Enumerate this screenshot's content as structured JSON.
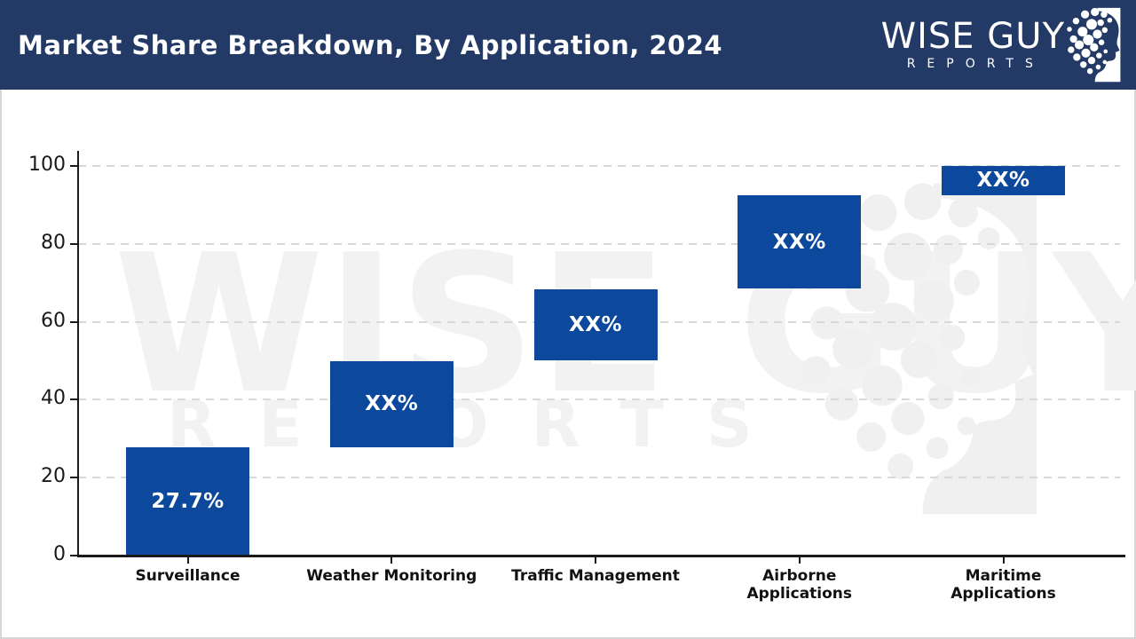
{
  "header": {
    "title": "Market Share Breakdown, By Application, 2024",
    "logo": {
      "line1": "WISE GUY",
      "line2": "REPORTS"
    }
  },
  "watermark": {
    "line1": "WISE GUY",
    "line2": "REPORTS"
  },
  "colors": {
    "header_bg": "#233a66",
    "bar_fill": "#0c499c",
    "bar_label_text": "#ffffff",
    "gridline": "#d9d9d9",
    "axis": "#1a1a1a",
    "watermark": "#f2f2f2",
    "page_border": "#d6d6d6"
  },
  "chart_data": {
    "type": "bar",
    "subtype": "waterfall-stacked-market-share",
    "title": "Market Share Breakdown, By Application, 2024",
    "categories": [
      "Surveillance",
      "Weather Monitoring",
      "Traffic Management",
      "Airborne Applications",
      "Maritime Applications"
    ],
    "x_tick_label_lines": [
      [
        "Surveillance"
      ],
      [
        "Weather Monitoring"
      ],
      [
        "Traffic Management"
      ],
      [
        "Airborne",
        "Applications"
      ],
      [
        "Maritime",
        "Applications"
      ]
    ],
    "segments": [
      {
        "category": "Surveillance",
        "start": 0,
        "end": 27.7,
        "label": "27.7%"
      },
      {
        "category": "Weather Monitoring",
        "start": 27.7,
        "end": 50.0,
        "label": "XX%"
      },
      {
        "category": "Traffic Management",
        "start": 50.0,
        "end": 68.3,
        "label": "XX%"
      },
      {
        "category": "Airborne Applications",
        "start": 68.5,
        "end": 92.5,
        "label": "XX%"
      },
      {
        "category": "Maritime Applications",
        "start": 92.5,
        "end": 100,
        "label": "XX%"
      }
    ],
    "y_ticks": [
      0,
      20,
      40,
      60,
      80,
      100
    ],
    "ylim": [
      0,
      103.9
    ],
    "xlabel": "",
    "ylabel": "",
    "grid": "horizontal-dashed",
    "legend": "none",
    "bar_color": "#0c499c"
  }
}
